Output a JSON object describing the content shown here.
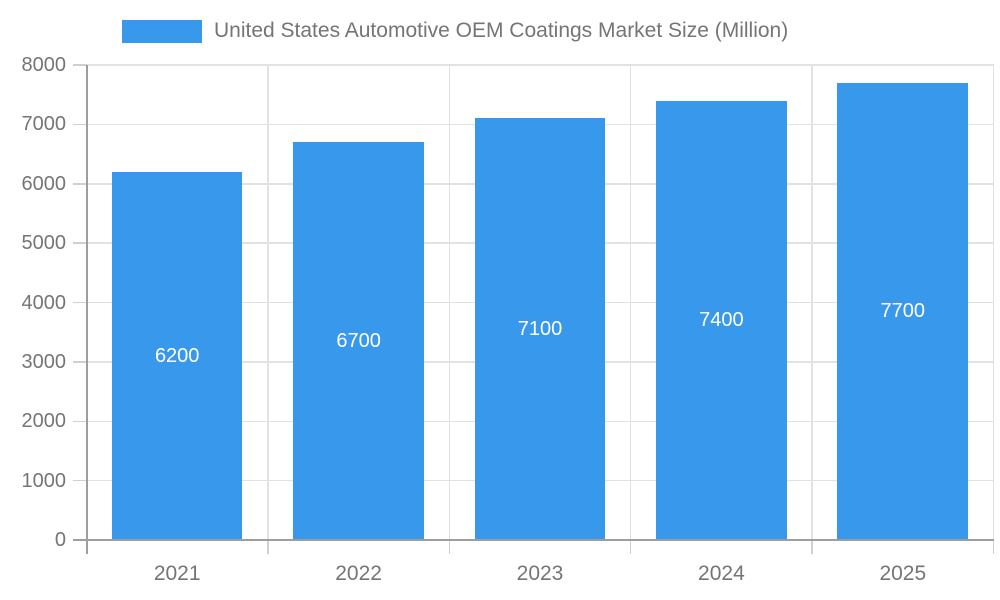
{
  "chart_data": {
    "type": "bar",
    "title": "United States Automotive OEM Coatings Market Size (Million)",
    "legend_position": "top",
    "categories": [
      "2021",
      "2022",
      "2023",
      "2024",
      "2025"
    ],
    "values": [
      6200,
      6700,
      7100,
      7400,
      7700
    ],
    "data_labels": [
      "6200",
      "6700",
      "7100",
      "7400",
      "7700"
    ],
    "xlabel": "",
    "ylabel": "",
    "ylim": [
      0,
      8000
    ],
    "yticks": [
      0,
      1000,
      2000,
      3000,
      4000,
      5000,
      6000,
      7000,
      8000
    ],
    "grid": true,
    "colors": {
      "bar": "#3898EC",
      "data_label": "#ffffff",
      "axis_label": "#757575",
      "grid_line": "#e2e2e2",
      "tick_mark": "#d0d0d0",
      "axis_line": "#9e9e9e",
      "background": "#ffffff"
    }
  }
}
